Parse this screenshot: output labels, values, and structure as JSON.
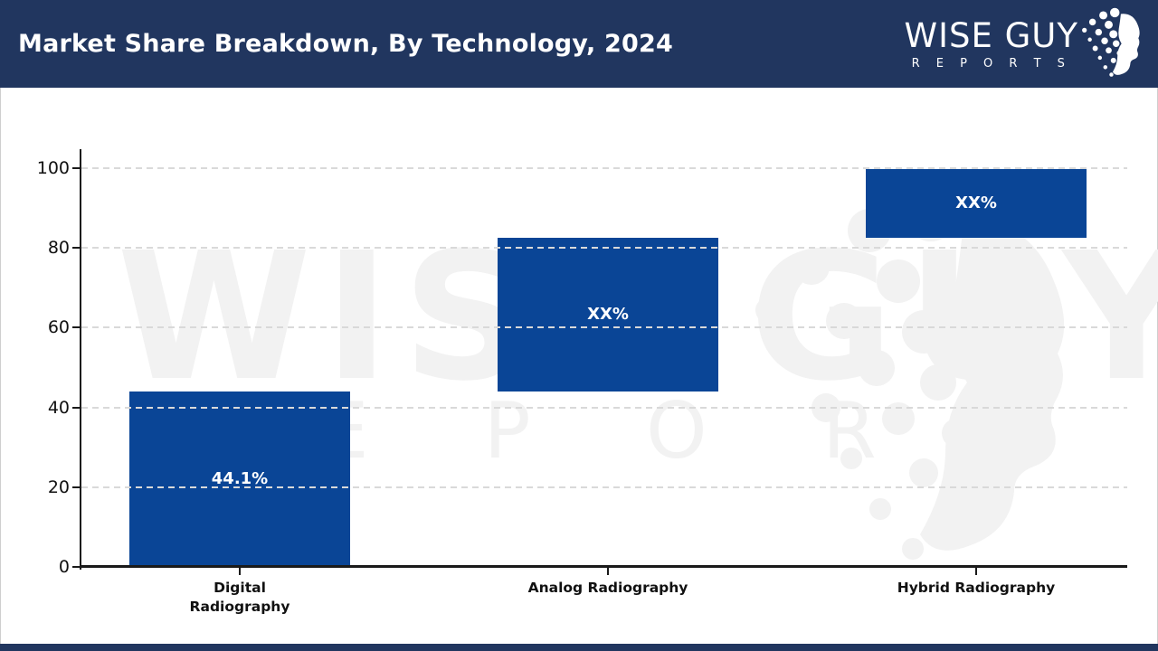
{
  "header": {
    "title": "Market Share Breakdown, By Technology, 2024",
    "logo": {
      "name": "WISE GUY",
      "tagline": "R E P O R T S"
    }
  },
  "watermark": {
    "line1": "WISE GUY",
    "line2": "R E P O R T S"
  },
  "colors": {
    "header_bg": "#21365F",
    "footer_bg": "#21365F",
    "bar": "#0A4596",
    "grid": "#D9D9D9",
    "axis": "#1A1A1A",
    "watermark": "#F2F2F2",
    "title_text": "#FFFFFF",
    "bar_label_text": "#FFFFFF"
  },
  "chart_data": {
    "type": "bar",
    "subtype": "stacked_waterfall_percent",
    "title": "Market Share Breakdown, By Technology, 2024",
    "categories": [
      {
        "label": "Digital Radiography",
        "label_lines": [
          "Digital",
          "Radiography"
        ]
      },
      {
        "label": "Analog Radiography",
        "label_lines": [
          "Analog Radiography"
        ]
      },
      {
        "label": "Hybrid Radiography",
        "label_lines": [
          "Hybrid Radiography"
        ]
      }
    ],
    "segments": [
      {
        "category": "Digital Radiography",
        "start": 0,
        "end": 44.1,
        "value_label": "44.1%"
      },
      {
        "category": "Analog Radiography",
        "start": 44.1,
        "end": 82.6,
        "value_label": "XX%"
      },
      {
        "category": "Hybrid Radiography",
        "start": 82.6,
        "end": 99.8,
        "value_label": "XX%"
      }
    ],
    "xlabel": "",
    "ylabel": "",
    "ylim": [
      0,
      100
    ],
    "yticks": [
      0,
      20,
      40,
      60,
      80,
      100
    ],
    "grid": {
      "horizontal": true,
      "style": "dashed"
    },
    "legend": "none"
  }
}
